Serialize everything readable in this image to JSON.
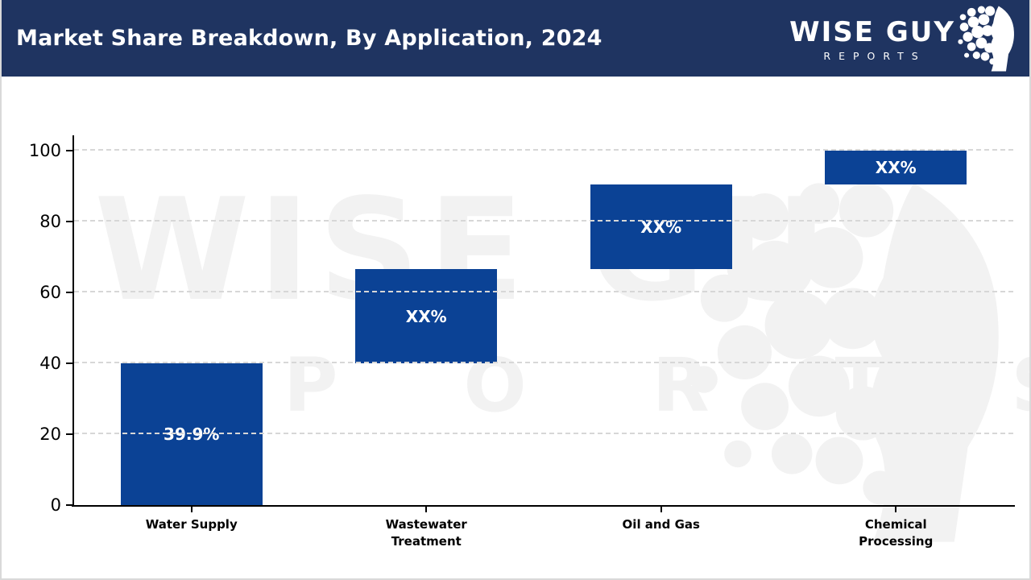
{
  "header": {
    "title": "Market Share Breakdown, By Application, 2024",
    "logo": {
      "line1": "WISE GUY",
      "line2": "REPORTS",
      "head_icon": "dotted-head-profile-icon"
    }
  },
  "watermark": {
    "line1": "WISE GU",
    "line2": "P O R T S"
  },
  "chart_data": {
    "type": "bar",
    "subtype": "waterfall",
    "title": "Market Share Breakdown, By Application, 2024",
    "xlabel": "",
    "ylabel": "",
    "categories": [
      "Water Supply",
      "Wastewater Treatment",
      "Oil and Gas",
      "Chemical Processing"
    ],
    "segments": [
      {
        "category": "Water Supply",
        "start": 0,
        "end": 39.9,
        "label": "39.9%"
      },
      {
        "category": "Wastewater Treatment",
        "start": 39.9,
        "end": 66.5,
        "label": "XX%"
      },
      {
        "category": "Oil and Gas",
        "start": 66.5,
        "end": 90.5,
        "label": "XX%"
      },
      {
        "category": "Chemical Processing",
        "start": 90.5,
        "end": 100,
        "label": "XX%"
      }
    ],
    "ylim": [
      0,
      100
    ],
    "yticks": [
      0,
      20,
      40,
      60,
      80,
      100
    ],
    "grid": "horizontal-dashed-above-bars",
    "legend": "none",
    "colors": {
      "bar": "#0b4295",
      "bar_label": "#ffffff",
      "axis": "#000000",
      "grid": "#d7d7d7",
      "header_bg": "#1f3461",
      "header_text": "#ffffff",
      "watermark": "#f2f2f2"
    }
  }
}
